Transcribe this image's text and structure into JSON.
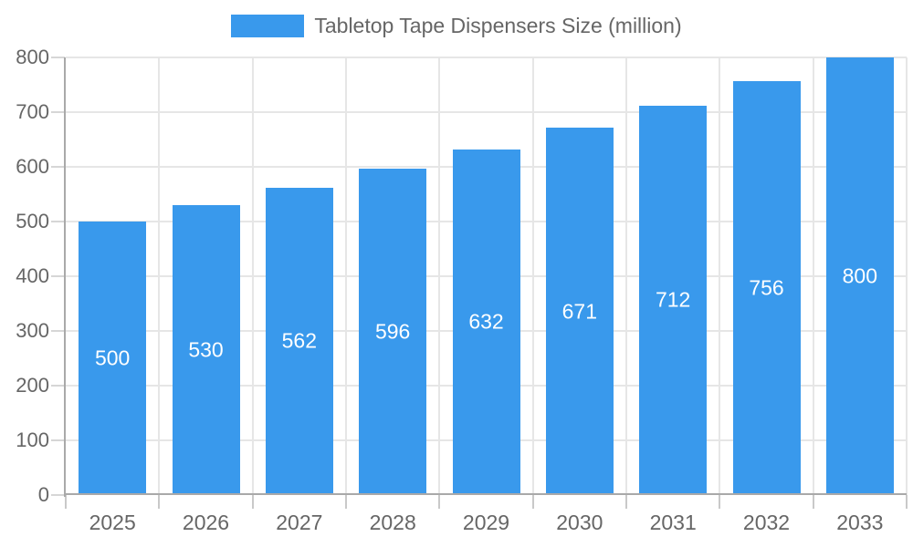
{
  "chart_data": {
    "type": "bar",
    "title": "Tabletop Tape Dispensers Size (million)",
    "legend_position": "top",
    "categories": [
      "2025",
      "2026",
      "2027",
      "2028",
      "2029",
      "2030",
      "2031",
      "2032",
      "2033"
    ],
    "series": [
      {
        "name": "Tabletop Tape Dispensers Size (million)",
        "values": [
          500,
          530,
          562,
          596,
          632,
          671,
          712,
          756,
          800
        ]
      }
    ],
    "xlabel": "",
    "ylabel": "",
    "ylim": [
      0,
      800
    ],
    "ytick_step": 100,
    "yticks": [
      0,
      100,
      200,
      300,
      400,
      500,
      600,
      700,
      800
    ],
    "grid": true,
    "data_labels_shown": true,
    "colors": {
      "bar": "#3999EC",
      "value_label": "#ffffff",
      "axis_text": "#666666",
      "gridline": "#e6e6e6",
      "axis_border": "#a9a9a9"
    }
  }
}
